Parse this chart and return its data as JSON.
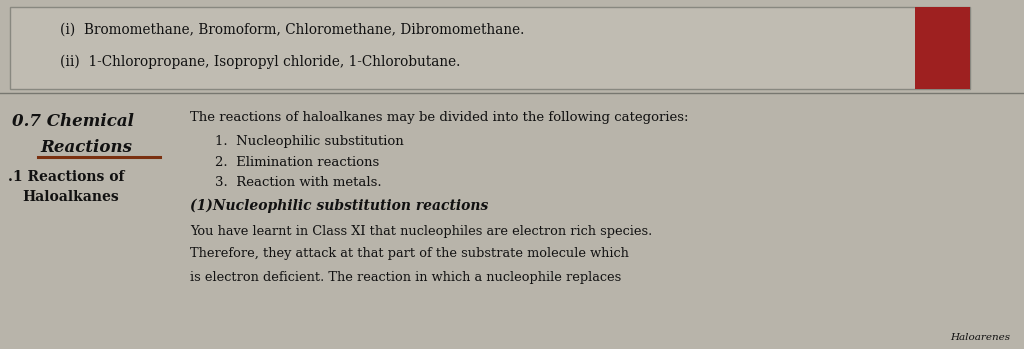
{
  "bg_color": "#b8b4aa",
  "top_area_color": "#c0bcb2",
  "red_tab_color": "#9e2020",
  "line1": "(i)  Bromomethane, Bromoform, Chloromethane, Dibromomethane.",
  "line2": "(ii)  1-Chloropropane, Isopropyl chloride, 1-Chlorobutane.",
  "section_heading1": "0.7 Chemical",
  "section_heading2": "Reactions",
  "section_underline_color": "#7a3010",
  "subsection_heading1": ".1 Reactions of",
  "subsection_heading2": "Haloalkanes",
  "intro_text": "The reactions of haloalkanes may be divided into the following categories:",
  "list_items": [
    "1.  Nucleophilic substitution",
    "2.  Elimination reactions",
    "3.  Reaction with metals."
  ],
  "bold_heading": "(1)Nucleophilic substitution reactions",
  "para1": "You have learnt in Class XI that nucleophiles are electron rich species.",
  "para2": "Therefore, they attack at that part of the substrate molecule which",
  "para3": "is electron deficient. The reaction in which a nucleophile replaces",
  "footer_text": "Haloarenes",
  "text_color": "#111111",
  "heading_color": "#111111",
  "font_family": "DejaVu Serif"
}
